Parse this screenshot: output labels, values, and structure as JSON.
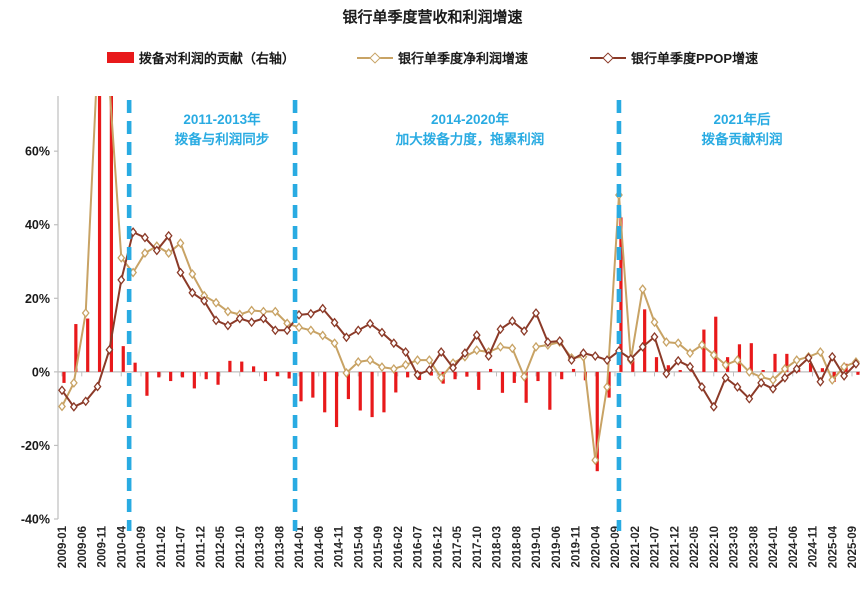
{
  "title": "银行单季度营收和利润增速",
  "annotations": [
    {
      "line1": "2011-2013年",
      "line2": "拨备与利润同步"
    },
    {
      "line1": "2014-2020年",
      "line2": "加大拨备力度，拖累利润"
    },
    {
      "line1": "2021年后",
      "line2": "拨备贡献利润"
    }
  ],
  "chart_data": {
    "type": "combo",
    "title": "银行单季度营收和利润增速",
    "x_start": "2009-01",
    "x_end": "2025-09",
    "x_label_interval_months": 5,
    "series_point_interval_months": 3,
    "x_labels": [
      "2009-01",
      "2009-06",
      "2009-11",
      "2010-04",
      "2010-09",
      "2011-02",
      "2011-07",
      "2011-12",
      "2012-05",
      "2012-10",
      "2013-03",
      "2013-08",
      "2014-01",
      "2014-06",
      "2014-11",
      "2015-04",
      "2015-09",
      "2016-02",
      "2016-07",
      "2016-12",
      "2017-05",
      "2017-10",
      "2018-03",
      "2018-08",
      "2019-01",
      "2019-06",
      "2019-11",
      "2020-04",
      "2020-09",
      "2021-02",
      "2021-07",
      "2021-12",
      "2022-05",
      "2022-10",
      "2023-03",
      "2023-08",
      "2024-01",
      "2024-06",
      "2024-11",
      "2025-04",
      "2025-09"
    ],
    "y_axis": {
      "ticks": [
        60,
        40,
        20,
        0,
        -20,
        -40
      ],
      "range": [
        -40,
        75
      ],
      "unit": "%",
      "grid": false
    },
    "dividers": {
      "color": "#29ABE2",
      "month_positions": [
        17,
        59,
        141
      ]
    },
    "series": [
      {
        "name": "拨备对利润的贡献（右轴）",
        "type": "bar",
        "axis": "right",
        "color": "#E8191B",
        "values": [
          -3,
          13,
          14.5,
          80,
          85,
          7,
          2.5,
          -6.5,
          -1.5,
          -2.5,
          -1.5,
          -4.5,
          -2,
          -3.5,
          3,
          2.8,
          1.5,
          -2.5,
          -1.2,
          -1.8,
          -8,
          -7,
          -11,
          -15,
          -7.4,
          -10.5,
          -12.3,
          -11,
          -5.6,
          -1.5,
          -2.2,
          -1,
          -3.2,
          -2,
          -1.3,
          -4.9,
          0.8,
          -5.7,
          -3,
          -8.4,
          -2.5,
          -10.3,
          -2,
          0.8,
          -2.3,
          -27,
          -7,
          42,
          3,
          17,
          4,
          1.8,
          0.5,
          0.5,
          11.5,
          15,
          4,
          7.5,
          7.8,
          0.5,
          4.9,
          4.9,
          0.5,
          2.4,
          1,
          -2.7,
          2.2,
          -0.8
        ]
      },
      {
        "name": "银行单季度净利润增速",
        "type": "line",
        "marker": "diamond",
        "color": "#C8A365",
        "values": [
          -9.4,
          -3,
          16,
          85,
          78,
          31,
          27,
          32.3,
          34.2,
          32.3,
          35,
          26.6,
          20.7,
          18.8,
          16.4,
          15.6,
          16.7,
          16.4,
          16.4,
          13.2,
          12.1,
          11.3,
          9.9,
          7.8,
          -0.3,
          2.7,
          3.2,
          1.3,
          0.8,
          1.9,
          3.2,
          3.2,
          -1.6,
          2.4,
          4.1,
          5.9,
          5.4,
          6.8,
          6.4,
          -1.3,
          6.8,
          7.3,
          8.1,
          3.8,
          4.1,
          -24,
          -4.1,
          48.1,
          3.2,
          22.5,
          13.5,
          8.1,
          7.8,
          5.1,
          7.3,
          4.6,
          1.9,
          3.2,
          0,
          -1.4,
          -2.2,
          0.8,
          3.2,
          4.1,
          5.4,
          -2.2,
          1.4,
          2.7
        ]
      },
      {
        "name": "银行单季度PPOP增速",
        "type": "line",
        "marker": "diamond",
        "color": "#8B3A28",
        "values": [
          -5,
          -9.5,
          -8,
          -4,
          6,
          25,
          38,
          36.5,
          33,
          37,
          27,
          21.5,
          19.3,
          14,
          12.6,
          14.5,
          13.5,
          14.5,
          11.3,
          11.3,
          15.5,
          15.8,
          17.2,
          13.4,
          9.4,
          11.3,
          13.1,
          10.7,
          7.8,
          5.4,
          -0.8,
          0.5,
          5.4,
          1.1,
          5.1,
          10,
          4.3,
          11.6,
          13.8,
          11.1,
          16,
          8.1,
          8.4,
          3.2,
          5.1,
          4.3,
          3.2,
          5.7,
          3.5,
          6.8,
          9.5,
          -0.5,
          3.0,
          1.4,
          -4.1,
          -9.5,
          -1.6,
          -4.1,
          -7.3,
          -3.0,
          -4.6,
          -1.6,
          0.8,
          3.8,
          -2.7,
          4.1,
          -1.1,
          2.2
        ]
      }
    ]
  }
}
